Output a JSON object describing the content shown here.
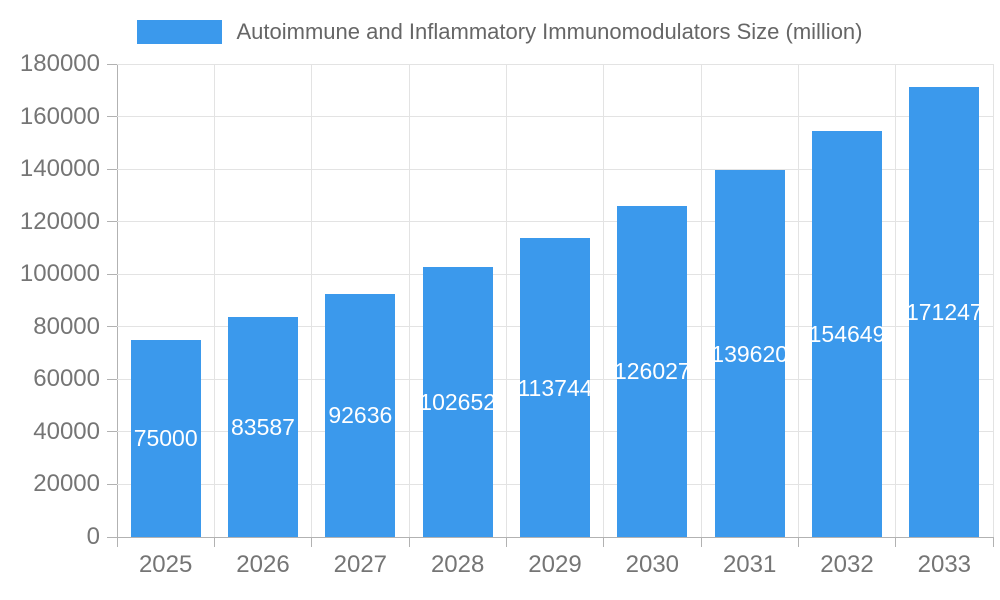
{
  "legend": {
    "label": "Autoimmune and Inflammatory Immunomodulators Size (million)"
  },
  "chart_data": {
    "type": "bar",
    "title": "Autoimmune and Inflammatory Immunomodulators Size (million)",
    "categories": [
      "2025",
      "2026",
      "2027",
      "2028",
      "2029",
      "2030",
      "2031",
      "2032",
      "2033"
    ],
    "values": [
      75000,
      83587,
      92636,
      102652,
      113744,
      126027,
      139620,
      154649,
      171247
    ],
    "value_labels": [
      "75000",
      "83587",
      "92636",
      "102652",
      "113744",
      "126027",
      "139620",
      "154649",
      "171247"
    ],
    "xlabel": "",
    "ylabel": "",
    "ylim": [
      0,
      180000
    ],
    "ytick_step": 20000,
    "ytick_labels": [
      "0",
      "20000",
      "40000",
      "60000",
      "80000",
      "100000",
      "120000",
      "140000",
      "160000",
      "180000"
    ],
    "grid": true,
    "legend_position": "top",
    "colors": {
      "bar": "#3b99ec",
      "value_label": "#ffffff",
      "grid_line": "#e3e3e3",
      "axis_line": "#b2b2b2",
      "tick_label": "#757575",
      "legend_text": "#666666",
      "background": "#ffffff"
    }
  }
}
